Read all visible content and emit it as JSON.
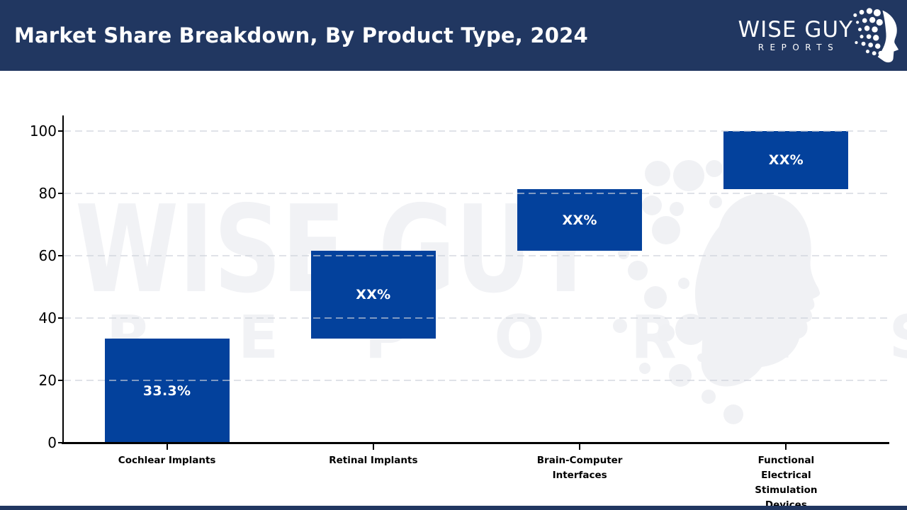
{
  "header": {
    "title": "Market Share Breakdown, By Product Type, 2024",
    "logo": {
      "wordmark": "WISE GUY",
      "subtext": "REPORTS"
    }
  },
  "watermark": {
    "line1": "WISE GUY",
    "line2": "R E P O R T S"
  },
  "chart_data": {
    "type": "bar",
    "subtype": "floating-waterfall",
    "title": "Market Share Breakdown, By Product Type, 2024",
    "categories": [
      "Cochlear Implants",
      "Retinal Implants",
      "Brain-Computer Interfaces",
      "Functional Electrical Stimulation Devices"
    ],
    "category_lines": [
      [
        "Cochlear Implants"
      ],
      [
        "Retinal Implants"
      ],
      [
        "Brain-Computer",
        "Interfaces"
      ],
      [
        "Functional",
        "Electrical",
        "Stimulation",
        "Devices"
      ]
    ],
    "segments": [
      {
        "category": "Cochlear Implants",
        "start": 0,
        "end": 33.3,
        "label": "33.3%"
      },
      {
        "category": "Retinal Implants",
        "start": 33.3,
        "end": 61.5,
        "label": "XX%"
      },
      {
        "category": "Brain-Computer Interfaces",
        "start": 61.5,
        "end": 81.2,
        "label": "XX%"
      },
      {
        "category": "Functional Electrical Stimulation Devices",
        "start": 81.2,
        "end": 100,
        "label": "XX%"
      }
    ],
    "ylim": [
      0,
      100
    ],
    "yticks": [
      0,
      20,
      40,
      60,
      80,
      100
    ],
    "xlabel": "",
    "ylabel": "",
    "grid": "horizontal-dashed"
  },
  "colors": {
    "header_bg": "#213761",
    "footer_bg": "#213761",
    "bar": "#03419c",
    "bar_label": "#ffffff",
    "axis": "#000000",
    "gridline_rgba": "rgba(205,209,218,0.62)",
    "watermark": "#f1f2f5",
    "title_text": "#ffffff"
  }
}
